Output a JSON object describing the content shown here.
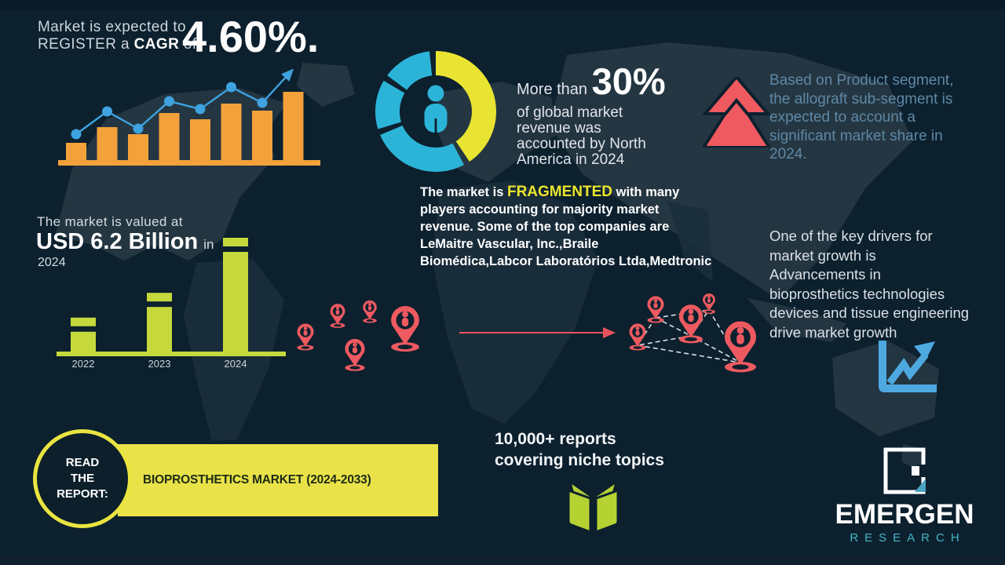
{
  "colors": {
    "background": "#0c202e",
    "map": "#2e3e4a",
    "map_dark": "#1b2e3c",
    "orange": "#f3a13a",
    "line_blue": "#3ea3df",
    "donut_yellow": "#e9e432",
    "donut_blue": "#2cb4d8",
    "coral": "#ee5a60",
    "steel_text": "#5f88a6",
    "green": "#c5d93c",
    "book_green": "#b5d232",
    "banner_yellow": "#e9e249",
    "teal": "#44b5c6",
    "icon_blue": "#4ea9e0"
  },
  "cagr": {
    "line1": "Market is expected to",
    "line2_pre": "REGISTER a ",
    "line2_bold": "CAGR",
    "line2_post": " of",
    "value": "4.60%."
  },
  "north_america": {
    "prefix": "More than ",
    "value": "30%",
    "lines": [
      "of global market",
      "revenue was",
      "accounted by North",
      "America in 2024"
    ]
  },
  "allograft": {
    "lines": [
      "Based on Product  segment,",
      "the allograft sub-segment is",
      "expected to account a",
      "significant market share in",
      "2024."
    ]
  },
  "fragmented": {
    "pre": "The market is ",
    "highlight": "FRAGMENTED",
    "post": " with many",
    "lines": [
      "players accounting  for majority  market",
      "revenue.  Some of the top companies  are",
      "LeMaitre  Vascular,  Inc.,Braile",
      "Biomédica,Labcor  Laboratórios  Ltda,Medtronic"
    ]
  },
  "valuation": {
    "line1": "The market is valued  at",
    "value": "USD 6.2 Billion",
    "suffix": "in",
    "year": "2024"
  },
  "drivers": {
    "lines": [
      "One of the key drivers for",
      "market growth is",
      "Advancements in",
      "bioprosthetics technologies",
      "devices and tissue engineering",
      "drive market growth"
    ]
  },
  "read_report": {
    "circle_lines": [
      "READ",
      "THE",
      "REPORT:"
    ],
    "banner": "BIOPROSTHETICS MARKET (2024-2033)"
  },
  "reports": {
    "line1": "10,000+ reports",
    "line2": "covering niche topics"
  },
  "logo": {
    "name": "EMERGEN",
    "sub": "RESEARCH"
  },
  "chart_data": [
    {
      "id": "cagr-trend",
      "type": "bar",
      "values": [
        2.2,
        4.2,
        3.3,
        6.0,
        5.2,
        7.2,
        6.3,
        8.7
      ],
      "line_values": [
        3.3,
        6.2,
        4.0,
        7.5,
        6.5,
        9.3,
        7.3
      ],
      "arrow_value": 11.0,
      "bar_color": "#f3a13a",
      "line_color": "#3ea3df",
      "ylim": [
        0,
        11
      ],
      "legend": "decorative growth trend, no axis labels"
    },
    {
      "id": "na-share-donut",
      "type": "pie",
      "donut": true,
      "slices": [
        {
          "label": "North America",
          "value": 40,
          "color": "#e9e432"
        },
        {
          "label": "",
          "value": 26,
          "color": "#2cb4d8"
        },
        {
          "label": "",
          "value": 13,
          "color": "#2cb4d8"
        },
        {
          "label": "",
          "value": 13,
          "color": "#2cb4d8"
        }
      ]
    },
    {
      "id": "market-value",
      "type": "bar",
      "categories": [
        "2022",
        "2023",
        "2024"
      ],
      "values": [
        1.85,
        3.2,
        6.2
      ],
      "bar_color": "#c5d93c",
      "ylim": [
        0,
        6.5
      ]
    }
  ]
}
